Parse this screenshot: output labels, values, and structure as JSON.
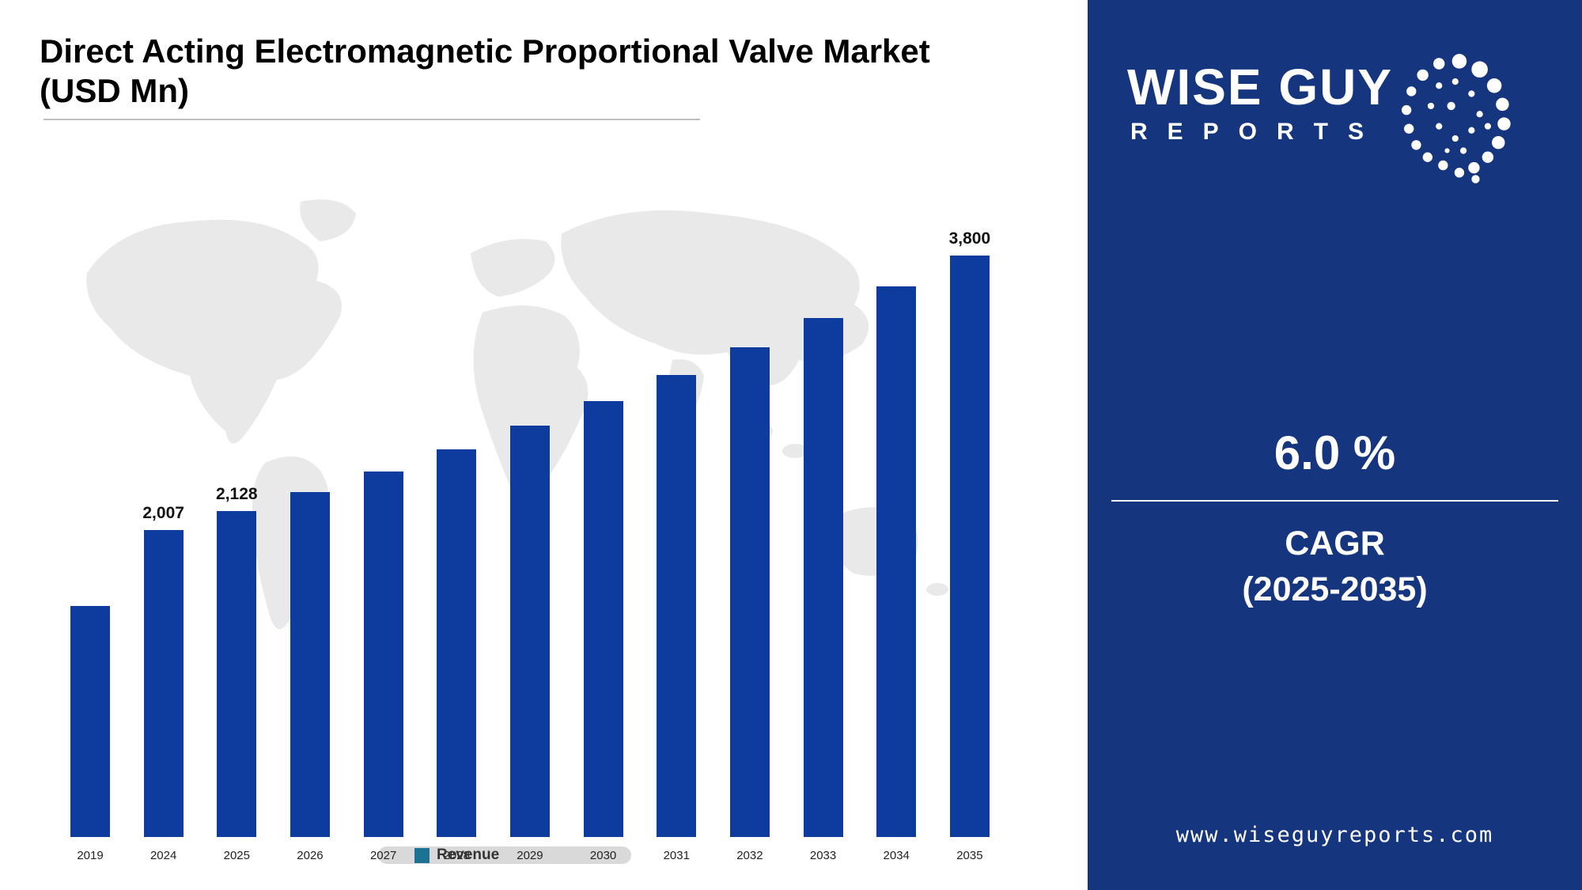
{
  "header": {
    "title": "Direct Acting Electromagnetic Proportional Valve Market (USD Mn)"
  },
  "chart_data": {
    "type": "bar",
    "title": "Direct Acting Electromagnetic Proportional Valve Market (USD Mn)",
    "categories": [
      "2019",
      "2024",
      "2025",
      "2026",
      "2027",
      "2028",
      "2029",
      "2030",
      "2031",
      "2032",
      "2033",
      "2034",
      "2035"
    ],
    "values": [
      1510,
      2007,
      2128,
      2256,
      2391,
      2535,
      2687,
      2848,
      3019,
      3200,
      3392,
      3596,
      3800
    ],
    "labels": {
      "2024": "2,007",
      "2025": "2,128",
      "2035": "3,800"
    },
    "xlabel": "",
    "ylabel": "",
    "ylim": [
      0,
      3800
    ],
    "grid": false,
    "bar_color": "#0d3b9e",
    "legend_position": "bottom",
    "legend": [
      {
        "label": "Revenue",
        "color": "#1c7293"
      }
    ]
  },
  "panel": {
    "background": "#16357f",
    "logo_line1": "WISE GUY",
    "logo_line2": "REPORTS",
    "cagr_value": "6.0 %",
    "cagr_label_line1": "CAGR",
    "cagr_label_line2": "(2025-2035)",
    "website": "www.wiseguyreports.com"
  }
}
